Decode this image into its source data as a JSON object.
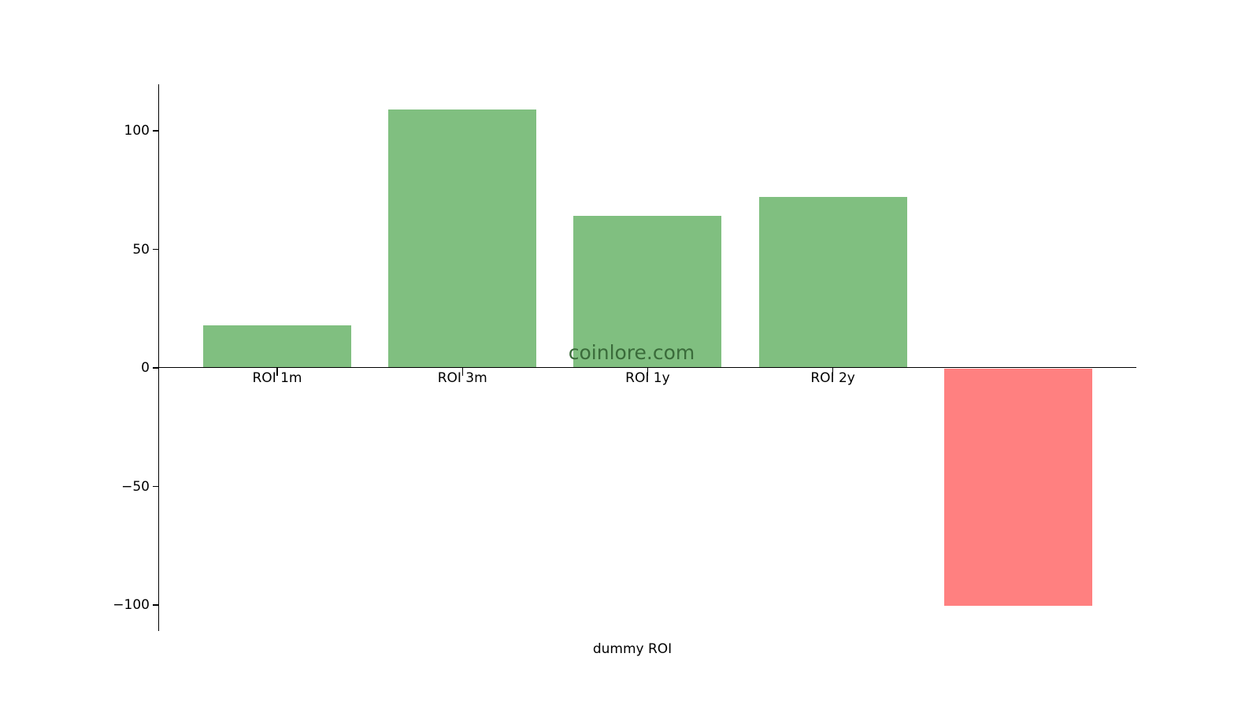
{
  "page": {
    "background": "#ffffff"
  },
  "chart_data": {
    "type": "bar",
    "categories": [
      "ROI 1m",
      "ROI 3m",
      "ROI 1y",
      "ROI 2y",
      ""
    ],
    "values": [
      18,
      109,
      64,
      72,
      -100
    ],
    "title": "",
    "xlabel": "dummy ROI",
    "ylabel": "",
    "yticks": [
      100,
      50,
      0,
      -50,
      -100
    ],
    "ytick_labels": [
      "100",
      "50",
      "0",
      "−50",
      "−100"
    ],
    "ylim": [
      -110,
      119
    ],
    "grid": false,
    "legend_position": "none",
    "watermark": "coinlore.com",
    "colors": {
      "positive_bar": "#80BF80",
      "negative_bar": "#FF8080",
      "axis": "#000000",
      "tick_text": "#000000",
      "watermark_text": "#3a6b3a"
    }
  }
}
